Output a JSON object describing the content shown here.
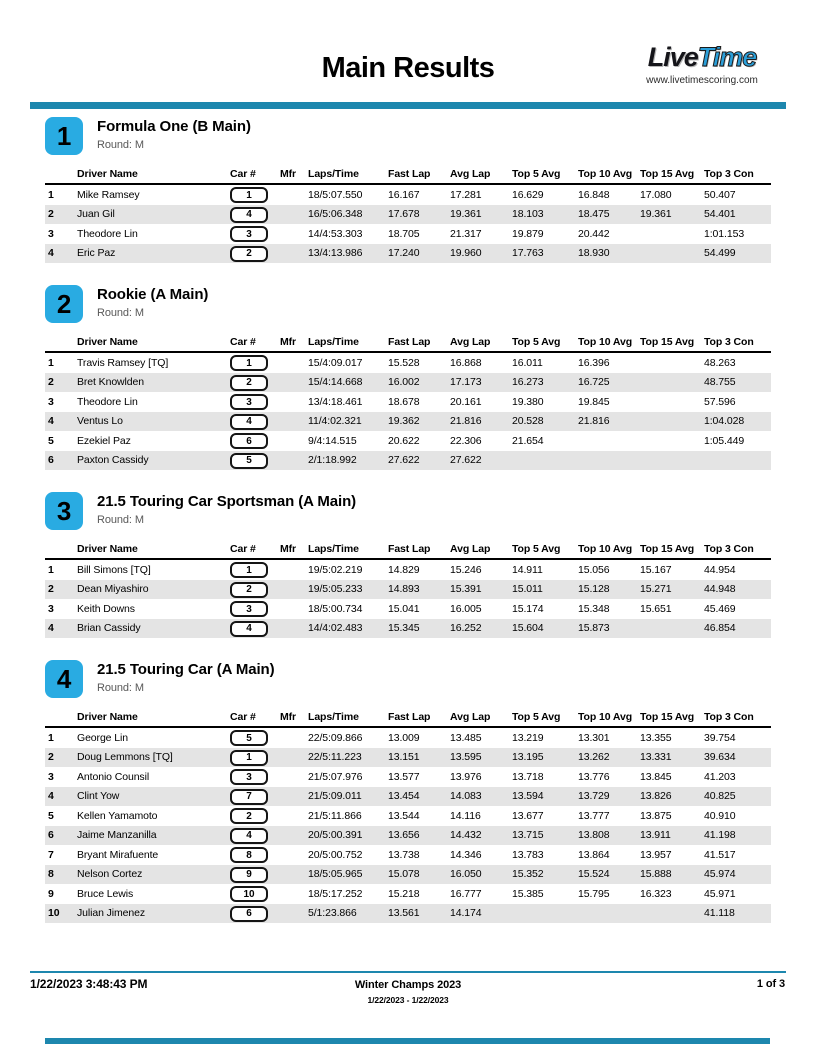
{
  "page": {
    "title": "Main Results",
    "logo": {
      "live": "Live",
      "time": "Time",
      "website": "www.livetimescoring.com"
    },
    "footer": {
      "printed": "1/22/2023 3:48:43 PM",
      "event": "Winter Champs 2023",
      "date_range": "1/22/2023 - 1/22/2023",
      "page_number": "1 of 3"
    }
  },
  "colors": {
    "accent_bar": "#1d87ae",
    "section_badge": "#29abe2",
    "row_alt": "#e4e4e4",
    "logo_time_blue": "#2b9fd9"
  },
  "table_headers": [
    "Driver Name",
    "Car #",
    "Mfr",
    "Laps/Time",
    "Fast Lap",
    "Avg Lap",
    "Top 5 Avg",
    "Top 10 Avg",
    "Top 15 Avg",
    "Top 3 Con"
  ],
  "sections": [
    {
      "number": "1",
      "title": "Formula One (B Main)",
      "round": "Round: M",
      "rows": [
        {
          "pos": "1",
          "driver": "Mike Ramsey",
          "car": "1",
          "mfr": "",
          "laps_time": "18/5:07.550",
          "fast_lap": "16.167",
          "avg_lap": "17.281",
          "top5_avg": "16.629",
          "top10_avg": "16.848",
          "top15_avg": "17.080",
          "top3_con": "50.407"
        },
        {
          "pos": "2",
          "driver": "Juan Gil",
          "car": "4",
          "mfr": "",
          "laps_time": "16/5:06.348",
          "fast_lap": "17.678",
          "avg_lap": "19.361",
          "top5_avg": "18.103",
          "top10_avg": "18.475",
          "top15_avg": "19.361",
          "top3_con": "54.401"
        },
        {
          "pos": "3",
          "driver": "Theodore Lin",
          "car": "3",
          "mfr": "",
          "laps_time": "14/4:53.303",
          "fast_lap": "18.705",
          "avg_lap": "21.317",
          "top5_avg": "19.879",
          "top10_avg": "20.442",
          "top15_avg": "",
          "top3_con": "1:01.153"
        },
        {
          "pos": "4",
          "driver": "Eric Paz",
          "car": "2",
          "mfr": "",
          "laps_time": "13/4:13.986",
          "fast_lap": "17.240",
          "avg_lap": "19.960",
          "top5_avg": "17.763",
          "top10_avg": "18.930",
          "top15_avg": "",
          "top3_con": "54.499"
        }
      ]
    },
    {
      "number": "2",
      "title": "Rookie (A Main)",
      "round": "Round: M",
      "rows": [
        {
          "pos": "1",
          "driver": "Travis Ramsey [TQ]",
          "car": "1",
          "mfr": "",
          "laps_time": "15/4:09.017",
          "fast_lap": "15.528",
          "avg_lap": "16.868",
          "top5_avg": "16.011",
          "top10_avg": "16.396",
          "top15_avg": "",
          "top3_con": "48.263"
        },
        {
          "pos": "2",
          "driver": "Bret Knowlden",
          "car": "2",
          "mfr": "",
          "laps_time": "15/4:14.668",
          "fast_lap": "16.002",
          "avg_lap": "17.173",
          "top5_avg": "16.273",
          "top10_avg": "16.725",
          "top15_avg": "",
          "top3_con": "48.755"
        },
        {
          "pos": "3",
          "driver": "Theodore Lin",
          "car": "3",
          "mfr": "",
          "laps_time": "13/4:18.461",
          "fast_lap": "18.678",
          "avg_lap": "20.161",
          "top5_avg": "19.380",
          "top10_avg": "19.845",
          "top15_avg": "",
          "top3_con": "57.596"
        },
        {
          "pos": "4",
          "driver": "Ventus Lo",
          "car": "4",
          "mfr": "",
          "laps_time": "11/4:02.321",
          "fast_lap": "19.362",
          "avg_lap": "21.816",
          "top5_avg": "20.528",
          "top10_avg": "21.816",
          "top15_avg": "",
          "top3_con": "1:04.028"
        },
        {
          "pos": "5",
          "driver": "Ezekiel Paz",
          "car": "6",
          "mfr": "",
          "laps_time": "9/4:14.515",
          "fast_lap": "20.622",
          "avg_lap": "22.306",
          "top5_avg": "21.654",
          "top10_avg": "",
          "top15_avg": "",
          "top3_con": "1:05.449"
        },
        {
          "pos": "6",
          "driver": "Paxton Cassidy",
          "car": "5",
          "mfr": "",
          "laps_time": "2/1:18.992",
          "fast_lap": "27.622",
          "avg_lap": "27.622",
          "top5_avg": "",
          "top10_avg": "",
          "top15_avg": "",
          "top3_con": ""
        }
      ]
    },
    {
      "number": "3",
      "title": "21.5 Touring Car Sportsman (A Main)",
      "round": "Round: M",
      "rows": [
        {
          "pos": "1",
          "driver": "Bill Simons [TQ]",
          "car": "1",
          "mfr": "",
          "laps_time": "19/5:02.219",
          "fast_lap": "14.829",
          "avg_lap": "15.246",
          "top5_avg": "14.911",
          "top10_avg": "15.056",
          "top15_avg": "15.167",
          "top3_con": "44.954"
        },
        {
          "pos": "2",
          "driver": "Dean Miyashiro",
          "car": "2",
          "mfr": "",
          "laps_time": "19/5:05.233",
          "fast_lap": "14.893",
          "avg_lap": "15.391",
          "top5_avg": "15.011",
          "top10_avg": "15.128",
          "top15_avg": "15.271",
          "top3_con": "44.948"
        },
        {
          "pos": "3",
          "driver": "Keith Downs",
          "car": "3",
          "mfr": "",
          "laps_time": "18/5:00.734",
          "fast_lap": "15.041",
          "avg_lap": "16.005",
          "top5_avg": "15.174",
          "top10_avg": "15.348",
          "top15_avg": "15.651",
          "top3_con": "45.469"
        },
        {
          "pos": "4",
          "driver": "Brian Cassidy",
          "car": "4",
          "mfr": "",
          "laps_time": "14/4:02.483",
          "fast_lap": "15.345",
          "avg_lap": "16.252",
          "top5_avg": "15.604",
          "top10_avg": "15.873",
          "top15_avg": "",
          "top3_con": "46.854"
        }
      ]
    },
    {
      "number": "4",
      "title": "21.5 Touring Car  (A Main)",
      "round": "Round: M",
      "rows": [
        {
          "pos": "1",
          "driver": "George Lin",
          "car": "5",
          "mfr": "",
          "laps_time": "22/5:09.866",
          "fast_lap": "13.009",
          "avg_lap": "13.485",
          "top5_avg": "13.219",
          "top10_avg": "13.301",
          "top15_avg": "13.355",
          "top3_con": "39.754"
        },
        {
          "pos": "2",
          "driver": "Doug Lemmons [TQ]",
          "car": "1",
          "mfr": "",
          "laps_time": "22/5:11.223",
          "fast_lap": "13.151",
          "avg_lap": "13.595",
          "top5_avg": "13.195",
          "top10_avg": "13.262",
          "top15_avg": "13.331",
          "top3_con": "39.634"
        },
        {
          "pos": "3",
          "driver": "Antonio Counsil",
          "car": "3",
          "mfr": "",
          "laps_time": "21/5:07.976",
          "fast_lap": "13.577",
          "avg_lap": "13.976",
          "top5_avg": "13.718",
          "top10_avg": "13.776",
          "top15_avg": "13.845",
          "top3_con": "41.203"
        },
        {
          "pos": "4",
          "driver": "Clint Yow",
          "car": "7",
          "mfr": "",
          "laps_time": "21/5:09.011",
          "fast_lap": "13.454",
          "avg_lap": "14.083",
          "top5_avg": "13.594",
          "top10_avg": "13.729",
          "top15_avg": "13.826",
          "top3_con": "40.825"
        },
        {
          "pos": "5",
          "driver": "Kellen Yamamoto",
          "car": "2",
          "mfr": "",
          "laps_time": "21/5:11.866",
          "fast_lap": "13.544",
          "avg_lap": "14.116",
          "top5_avg": "13.677",
          "top10_avg": "13.777",
          "top15_avg": "13.875",
          "top3_con": "40.910"
        },
        {
          "pos": "6",
          "driver": "Jaime Manzanilla",
          "car": "4",
          "mfr": "",
          "laps_time": "20/5:00.391",
          "fast_lap": "13.656",
          "avg_lap": "14.432",
          "top5_avg": "13.715",
          "top10_avg": "13.808",
          "top15_avg": "13.911",
          "top3_con": "41.198"
        },
        {
          "pos": "7",
          "driver": "Bryant Mirafuente",
          "car": "8",
          "mfr": "",
          "laps_time": "20/5:00.752",
          "fast_lap": "13.738",
          "avg_lap": "14.346",
          "top5_avg": "13.783",
          "top10_avg": "13.864",
          "top15_avg": "13.957",
          "top3_con": "41.517"
        },
        {
          "pos": "8",
          "driver": "Nelson Cortez",
          "car": "9",
          "mfr": "",
          "laps_time": "18/5:05.965",
          "fast_lap": "15.078",
          "avg_lap": "16.050",
          "top5_avg": "15.352",
          "top10_avg": "15.524",
          "top15_avg": "15.888",
          "top3_con": "45.974"
        },
        {
          "pos": "9",
          "driver": "Bruce Lewis",
          "car": "10",
          "mfr": "",
          "laps_time": "18/5:17.252",
          "fast_lap": "15.218",
          "avg_lap": "16.777",
          "top5_avg": "15.385",
          "top10_avg": "15.795",
          "top15_avg": "16.323",
          "top3_con": "45.971"
        },
        {
          "pos": "10",
          "driver": "Julian Jimenez",
          "car": "6",
          "mfr": "",
          "laps_time": "5/1:23.866",
          "fast_lap": "13.561",
          "avg_lap": "14.174",
          "top5_avg": "",
          "top10_avg": "",
          "top15_avg": "",
          "top3_con": "41.118"
        }
      ]
    }
  ]
}
